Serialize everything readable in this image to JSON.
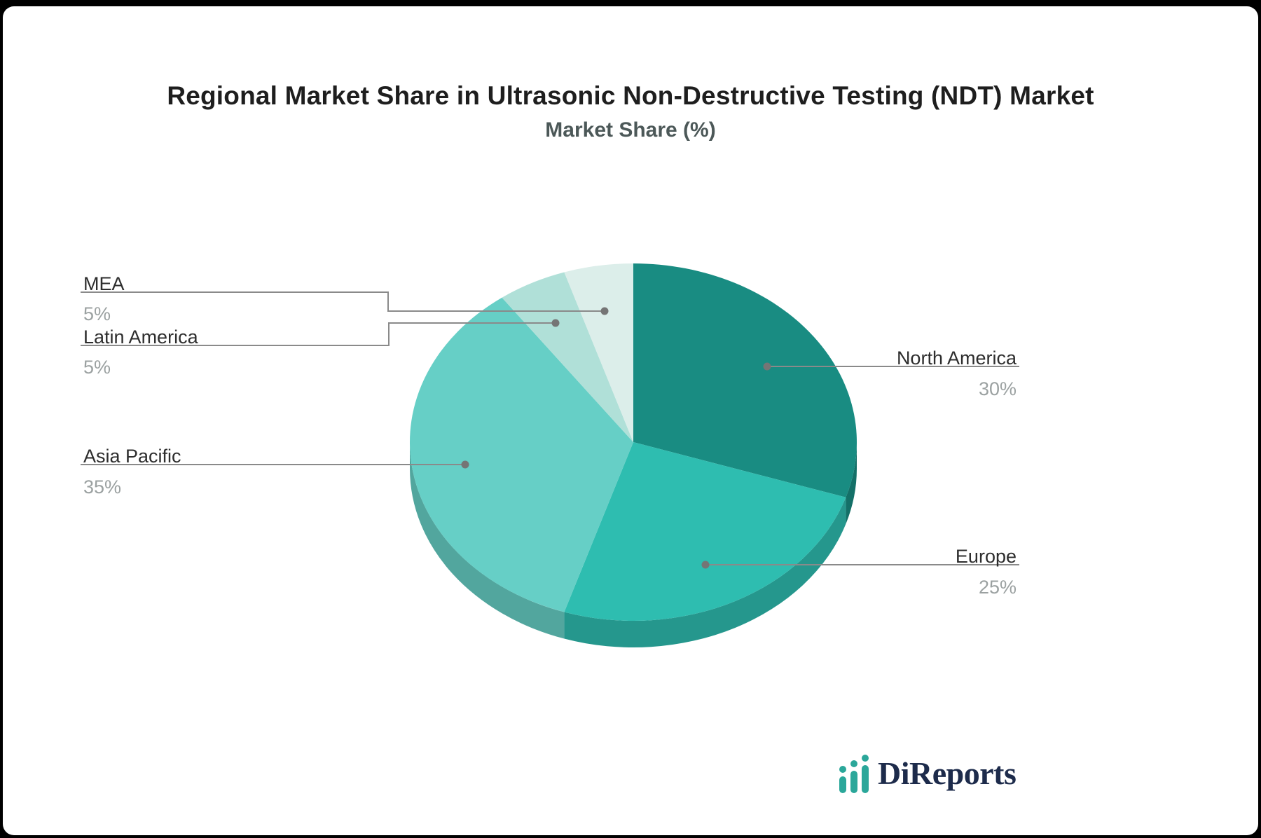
{
  "title": "Regional Market Share in Ultrasonic Non-Destructive Testing (NDT) Market",
  "subtitle": "Market Share (%)",
  "chart_data": {
    "type": "pie",
    "style": "3d-pie",
    "title": "Regional Market Share in Ultrasonic Non-Destructive Testing (NDT) Market",
    "subtitle": "Market Share (%)",
    "unit": "%",
    "start_angle_deg": 0,
    "direction": "clockwise",
    "legend_position": "callout-labels",
    "slices": [
      {
        "label": "North America",
        "value": 30,
        "display": "30%",
        "color": "#198c82",
        "callout_side": "right"
      },
      {
        "label": "Europe",
        "value": 25,
        "display": "25%",
        "color": "#2ebdb0",
        "callout_side": "right"
      },
      {
        "label": "Asia Pacific",
        "value": 35,
        "display": "35%",
        "color": "#66cfc6",
        "callout_side": "left"
      },
      {
        "label": "Latin America",
        "value": 5,
        "display": "5%",
        "color": "#b0e0d8",
        "callout_side": "left"
      },
      {
        "label": "MEA",
        "value": 5,
        "display": "5%",
        "color": "#dceeea",
        "callout_side": "left"
      }
    ],
    "leader_line_color": "#8a8a8a",
    "leader_dot_color": "#757575",
    "label_color": "#2d2d2d",
    "value_color": "#9ba1a1"
  },
  "logo": {
    "text": "DiReports",
    "icon": "bar-chart-logo-icon",
    "icon_color": "#2ba79a",
    "text_color": "#1d2b4b"
  }
}
